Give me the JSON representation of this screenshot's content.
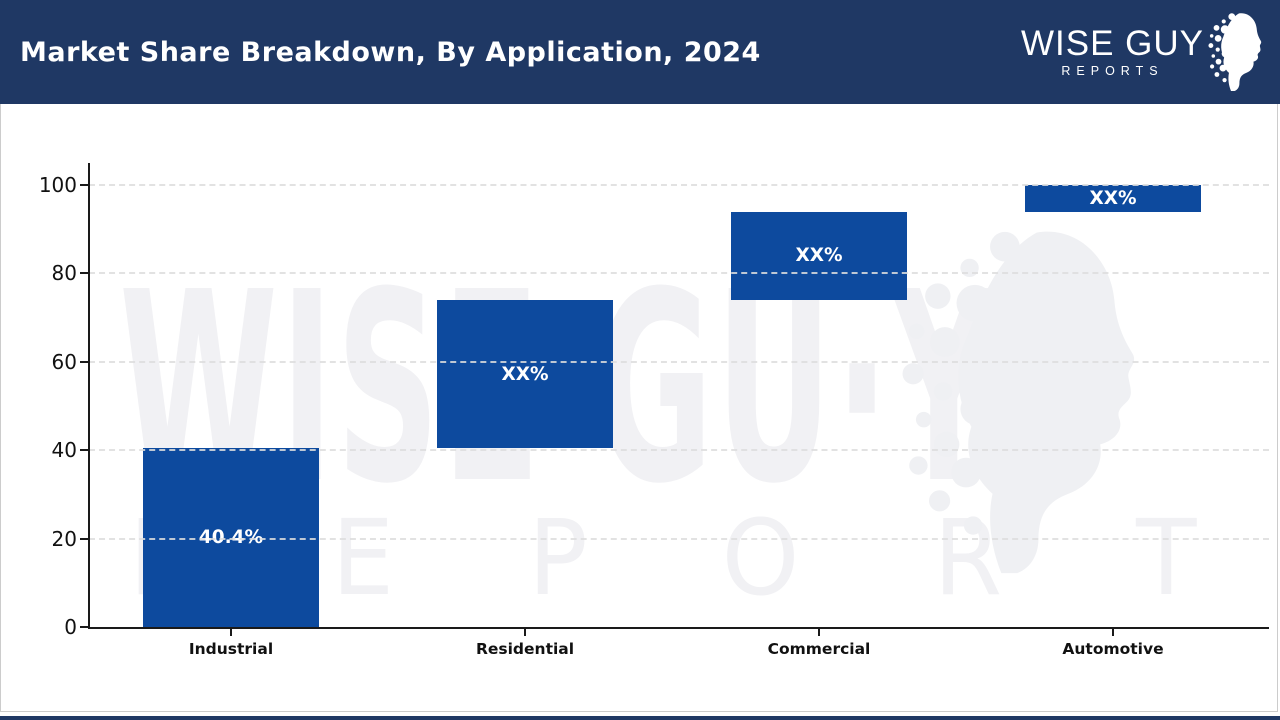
{
  "header": {
    "title": "Market Share Breakdown, By Application, 2024",
    "logo": {
      "brand_line1": "WISE GUY",
      "brand_line2": "REPORTS"
    }
  },
  "watermark": {
    "line1": "WISE GU·Y",
    "line2": "R E P O R T S"
  },
  "colors": {
    "header_bg": "#1f3864",
    "bar_fill": "#0d4a9e",
    "bar_label": "#ffffff",
    "grid": "#dedede",
    "axis": "#1a1a1a",
    "watermark": "#f1f1f4",
    "border": "#cccccc"
  },
  "chart_data": {
    "type": "bar",
    "subtype": "waterfall",
    "title": "Market Share Breakdown, By Application, 2024",
    "xlabel": "",
    "ylabel": "",
    "categories": [
      "Industrial",
      "Residential",
      "Commercial",
      "Automotive"
    ],
    "segments": [
      {
        "category": "Industrial",
        "start": 0,
        "end": 40.4,
        "label": "40.4%"
      },
      {
        "category": "Residential",
        "start": 40.4,
        "end": 74,
        "label": "XX%"
      },
      {
        "category": "Commercial",
        "start": 74,
        "end": 94,
        "label": "XX%"
      },
      {
        "category": "Automotive",
        "start": 94,
        "end": 100,
        "label": "XX%"
      }
    ],
    "yticks": [
      0,
      20,
      40,
      60,
      80,
      100
    ],
    "ylim": [
      0,
      105
    ],
    "grid": "horizontal-dashed",
    "legend": "none",
    "bar_color": "#0d4a9e"
  }
}
